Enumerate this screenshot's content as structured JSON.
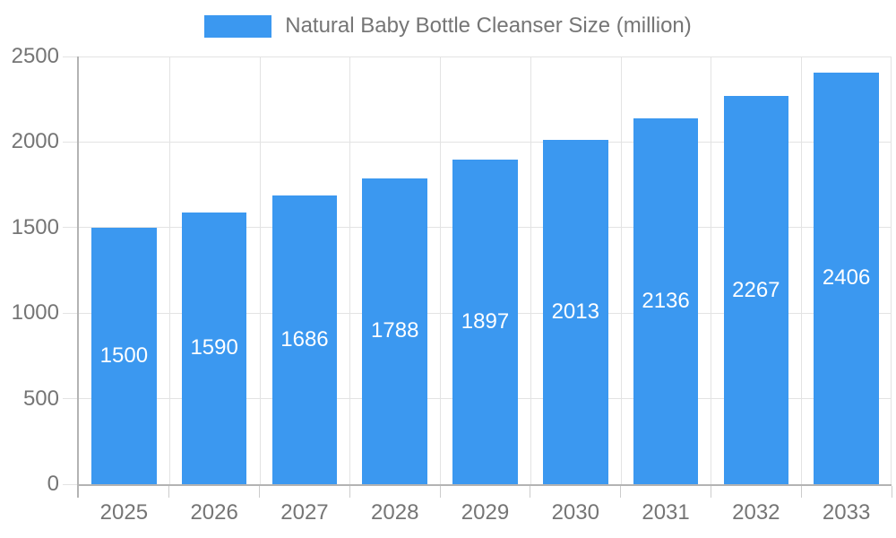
{
  "chart_data": {
    "type": "bar",
    "title": "Natural Baby Bottle Cleanser Size (million)",
    "series_name": "Natural Baby Bottle Cleanser Size (million)",
    "categories": [
      "2025",
      "2026",
      "2027",
      "2028",
      "2029",
      "2030",
      "2031",
      "2032",
      "2033"
    ],
    "values": [
      1500,
      1590,
      1686,
      1788,
      1897,
      2013,
      2136,
      2267,
      2406
    ],
    "xlabel": "",
    "ylabel": "",
    "ylim": [
      0,
      2500
    ],
    "yticks": [
      0,
      500,
      1000,
      1500,
      2000,
      2500
    ],
    "grid": true,
    "legend_position": "top-center",
    "value_label_position": "inside-center",
    "colors": {
      "bar": "#3B98F0",
      "value_label": "#FFFFFF",
      "axis_text": "#757575",
      "legend_text": "#757575",
      "gridline": "#E3E3E3",
      "axis_line": "#B3B3B3",
      "background": "#FFFFFF"
    }
  }
}
